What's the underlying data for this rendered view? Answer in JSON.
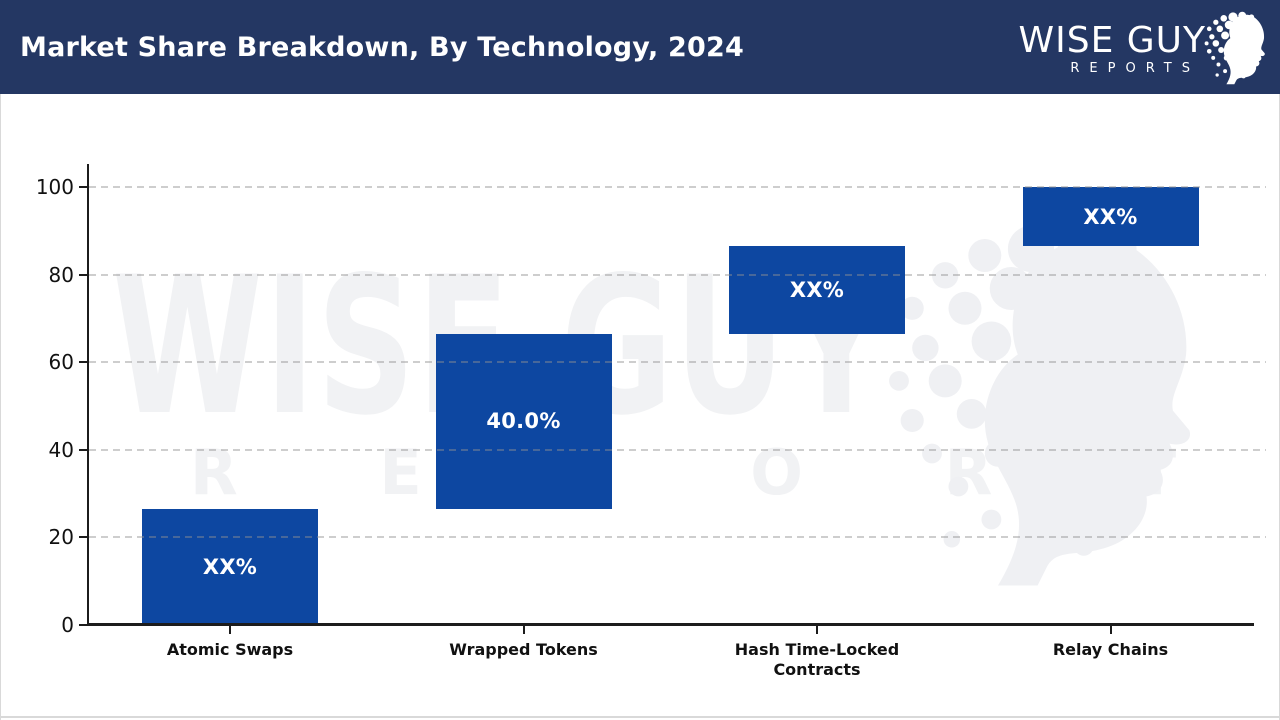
{
  "header": {
    "title": "Market Share Breakdown, By Technology, 2024",
    "logo": {
      "line1": "WISE GUY",
      "line2": "REPORTS"
    }
  },
  "watermark": {
    "line1": "WISE GUY",
    "line2": "REPORTS",
    "head_icon": "dotted-head-profile"
  },
  "chart_data": {
    "type": "bar",
    "subtype": "waterfall",
    "title": "Market Share Breakdown, By Technology, 2024",
    "categories": [
      "Atomic Swaps",
      "Wrapped Tokens",
      "Hash Time-Locked Contracts",
      "Relay Chains"
    ],
    "segments": [
      {
        "category": "Atomic Swaps",
        "start": 0,
        "end": 26.5,
        "value": 26.5,
        "label": "XX%"
      },
      {
        "category": "Wrapped Tokens",
        "start": 26.5,
        "end": 66.5,
        "value": 40.0,
        "label": "40.0%"
      },
      {
        "category": "Hash Time-Locked Contracts",
        "start": 66.5,
        "end": 86.5,
        "value": 20.0,
        "label": "XX%"
      },
      {
        "category": "Relay Chains",
        "start": 86.5,
        "end": 100,
        "value": 13.5,
        "label": "XX%"
      }
    ],
    "yticks": [
      0,
      20,
      40,
      60,
      80,
      100
    ],
    "ylim": [
      0,
      105
    ],
    "xlabel": "",
    "ylabel": "",
    "grid": "horizontal-dashed",
    "legend": false,
    "bar_color": "#0d47a1",
    "bar_label_color": "#ffffff",
    "header_color": "#243763"
  }
}
